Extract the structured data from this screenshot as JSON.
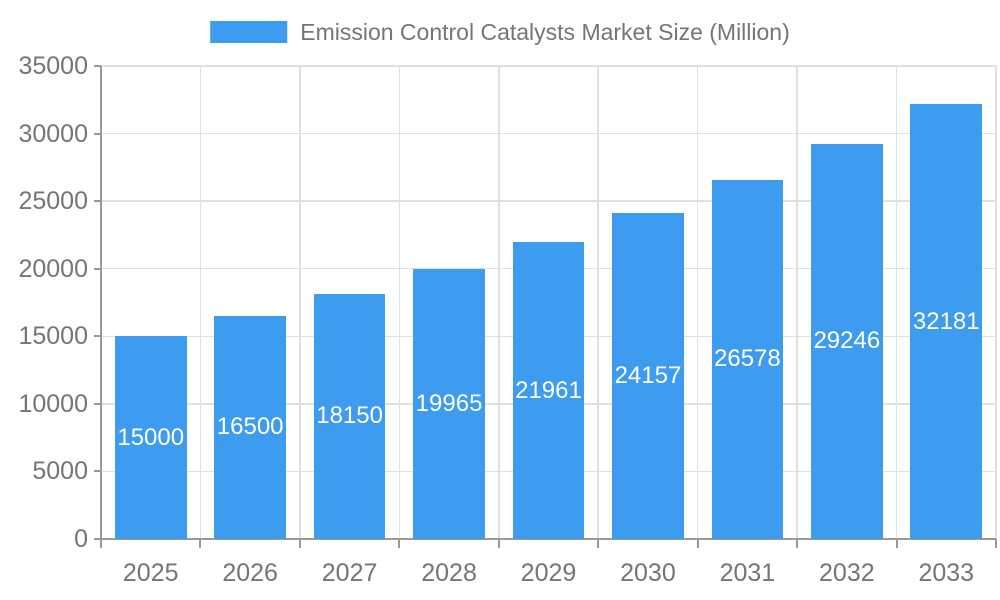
{
  "chart_data": {
    "type": "bar",
    "title": "Emission Control Catalysts Market Size (Million)",
    "legend": {
      "label": "Emission Control Catalysts Market Size (Million)",
      "position": "top"
    },
    "categories": [
      "2025",
      "2026",
      "2027",
      "2028",
      "2029",
      "2030",
      "2031",
      "2032",
      "2033"
    ],
    "series": [
      {
        "name": "Emission Control Catalysts Market Size (Million)",
        "values": [
          15000,
          16500,
          18150,
          19965,
          21961,
          24157,
          26578,
          29246,
          32181
        ]
      }
    ],
    "value_labels": [
      "15000",
      "16500",
      "18150",
      "19965",
      "21961",
      "24157",
      "26578",
      "29246",
      "32181"
    ],
    "xlabel": "",
    "ylabel": "",
    "ylim": [
      0,
      35000
    ],
    "yticks": [
      0,
      5000,
      10000,
      15000,
      20000,
      25000,
      30000,
      35000
    ],
    "ytick_labels": [
      "0",
      "5000",
      "10000",
      "15000",
      "20000",
      "25000",
      "30000",
      "35000"
    ],
    "grid": true,
    "colors": {
      "bar": "#3D9BF0",
      "axis_line": "#999999",
      "gridline": "#E0E0E0",
      "tick_text": "#757575",
      "legend_text": "#757575",
      "value_label_text": "#FFFFFF",
      "background": "#FFFFFF"
    }
  }
}
